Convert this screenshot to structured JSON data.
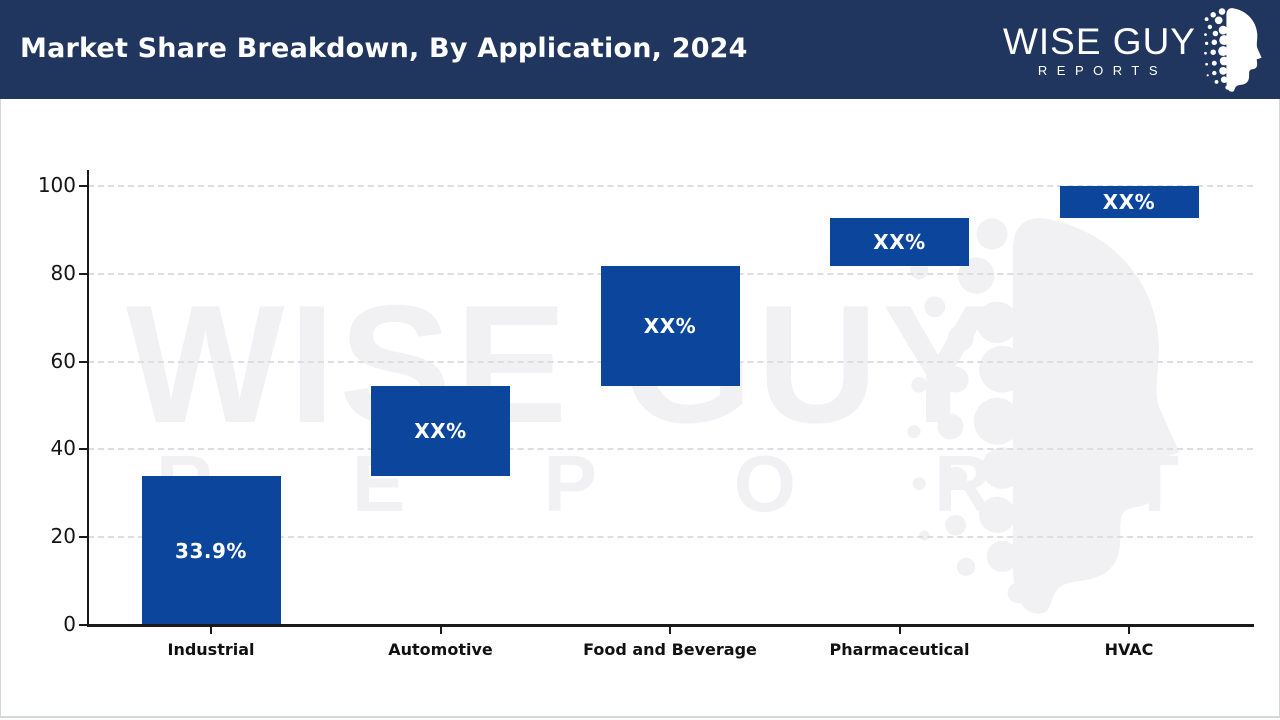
{
  "header": {
    "title": "Market Share Breakdown, By Application, 2024",
    "logo": {
      "line1": "WISE GUY",
      "line2": "REPORTS"
    }
  },
  "watermark": {
    "line1": "WISE GUY",
    "line2": "R E P O R T S"
  },
  "colors": {
    "header_bg": "#21365F",
    "bar": "#0B459C",
    "bar_label": "#FFFFFF",
    "grid": "#DEDEDE",
    "axis": "#1A1A1A",
    "tick_label": "#141414",
    "watermark": "#F1F1F4"
  },
  "chart_data": {
    "type": "bar",
    "subtype": "floating-waterfall",
    "title": "Market Share Breakdown, By Application, 2024",
    "categories": [
      "Industrial",
      "Automotive",
      "Food and Beverage",
      "Pharmaceutical",
      "HVAC"
    ],
    "segments": [
      {
        "category": "Industrial",
        "start": 0,
        "end": 33.9,
        "label": "33.9%"
      },
      {
        "category": "Automotive",
        "start": 33.9,
        "end": 54.4,
        "label": "XX%"
      },
      {
        "category": "Food and Beverage",
        "start": 54.4,
        "end": 81.7,
        "label": "XX%"
      },
      {
        "category": "Pharmaceutical",
        "start": 81.7,
        "end": 92.6,
        "label": "XX%"
      },
      {
        "category": "HVAC",
        "start": 92.6,
        "end": 100,
        "label": "XX%"
      }
    ],
    "yticks": [
      0,
      20,
      40,
      60,
      80,
      100
    ],
    "ylim": [
      0,
      100
    ],
    "xlabel": "",
    "ylabel": "",
    "grid": "horizontal dashed",
    "legend": "none"
  }
}
